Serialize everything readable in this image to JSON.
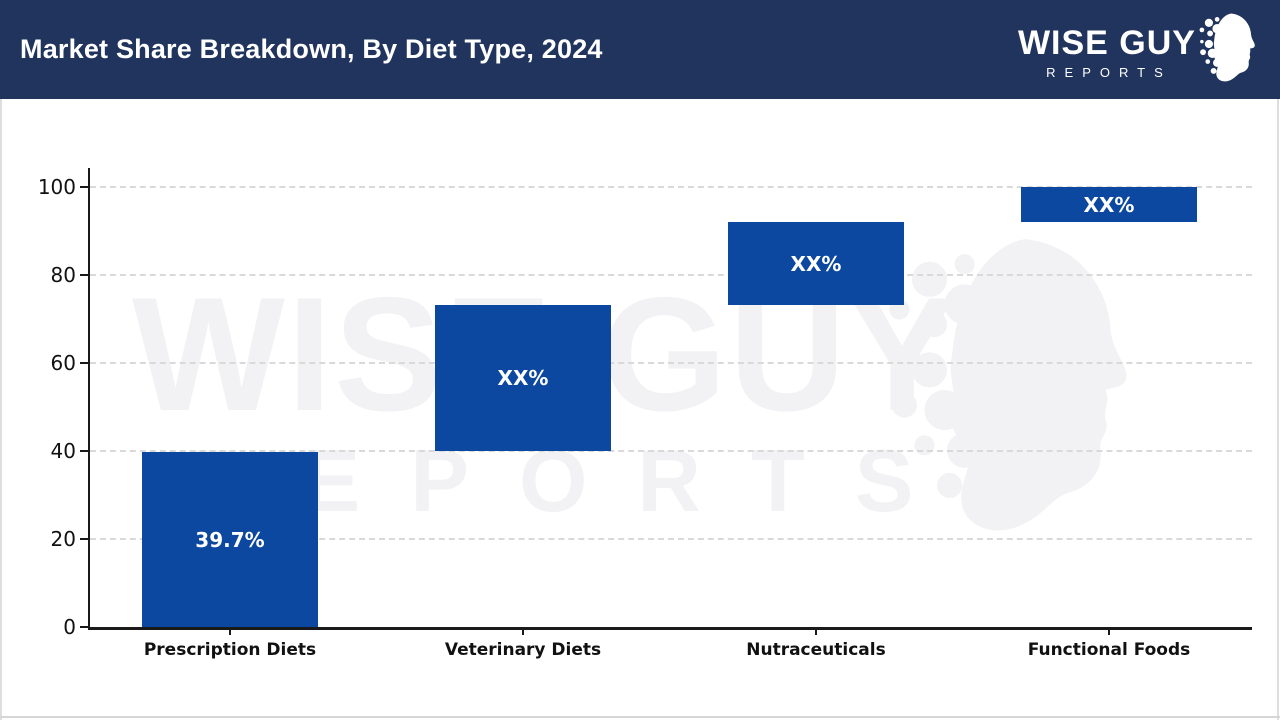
{
  "header": {
    "title": "Market Share Breakdown, By Diet Type, 2024",
    "logo": {
      "name": "WISE GUY",
      "tagline": "REPORTS"
    }
  },
  "watermark": {
    "name": "WISE GUY",
    "tagline": "REPORTS"
  },
  "colors": {
    "header_bg": "#21345e",
    "bar": "#0c47a0",
    "bar_label": "#ffffff",
    "grid": "#d9d9d9",
    "axis": "#1a1a1a",
    "watermark": "#f2f2f4"
  },
  "chart_data": {
    "type": "bar",
    "subtype": "waterfall",
    "title": "Market Share Breakdown, By Diet Type, 2024",
    "categories": [
      "Prescription Diets",
      "Veterinary Diets",
      "Nutraceuticals",
      "Functional Foods"
    ],
    "segments": [
      {
        "category": "Prescription Diets",
        "start": 0,
        "end": 39.7,
        "label": "39.7%"
      },
      {
        "category": "Veterinary Diets",
        "start": 40,
        "end": 73.2,
        "label": "XX%"
      },
      {
        "category": "Nutraceuticals",
        "start": 73.2,
        "end": 92,
        "label": "XX%"
      },
      {
        "category": "Functional Foods",
        "start": 92,
        "end": 100,
        "label": "XX%"
      }
    ],
    "yticks": [
      0,
      20,
      40,
      60,
      80,
      100
    ],
    "ylim": [
      0,
      104
    ],
    "xlabel": "",
    "ylabel": "",
    "grid": "horizontal-dashed",
    "legend": "none"
  }
}
